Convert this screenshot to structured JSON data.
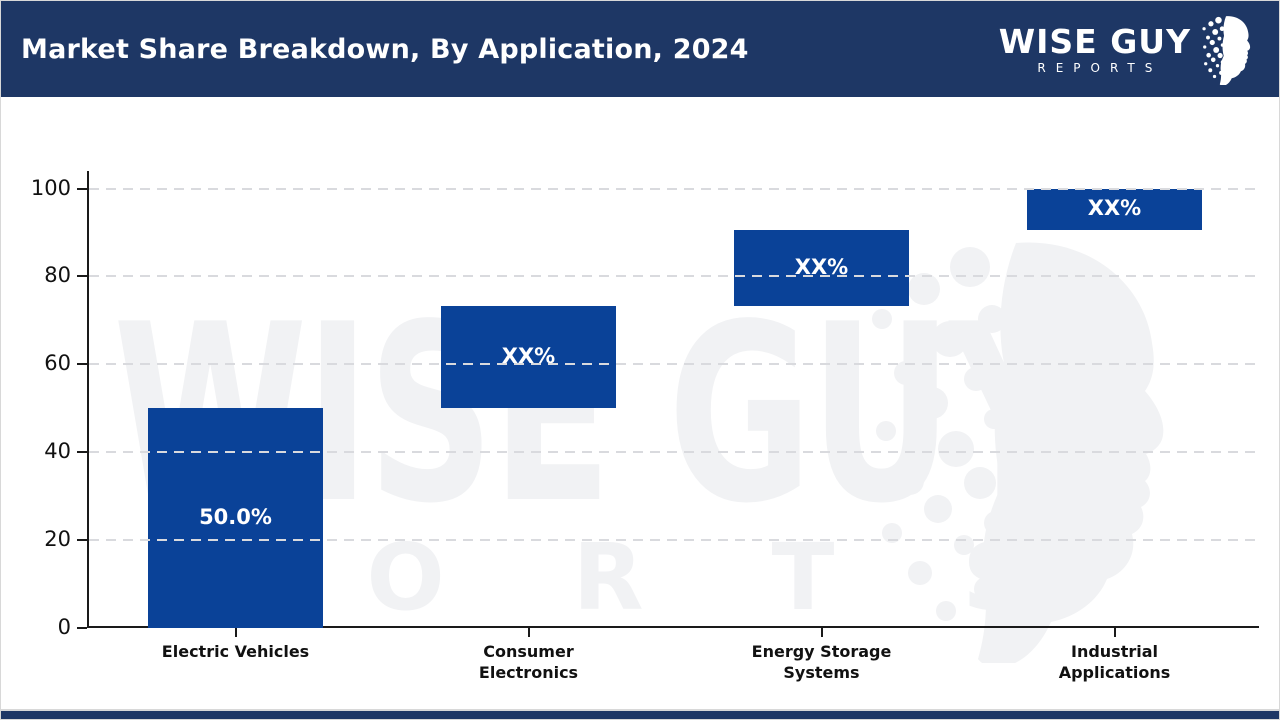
{
  "header": {
    "title": "Market Share Breakdown, By Application, 2024",
    "logo": {
      "wordmark": "WISE GUY",
      "subtext": "REPORTS"
    }
  },
  "watermark": {
    "line1": "WISE GUY",
    "line2": "P O R T S"
  },
  "colors": {
    "header_bg": "#1e3765",
    "bar": "#0a4298",
    "bar_label": "#ffffff",
    "axis": "#1a1a1a",
    "tick_label": "#111111",
    "grid": "#d9dade",
    "watermark": "#f1f2f4",
    "border": "#d8d8d8"
  },
  "chart_data": {
    "type": "bar",
    "subtype": "waterfall",
    "title": "Market Share Breakdown, By Application, 2024",
    "categories": [
      "Electric Vehicles",
      "Consumer Electronics",
      "Energy Storage Systems",
      "Industrial Applications"
    ],
    "category_lines": [
      [
        "Electric Vehicles"
      ],
      [
        "Consumer",
        "Electronics"
      ],
      [
        "Energy Storage",
        "Systems"
      ],
      [
        "Industrial",
        "Applications"
      ]
    ],
    "bars": [
      {
        "category": "Electric Vehicles",
        "start": 0,
        "end": 50,
        "value": 50.0,
        "label": "50.0%"
      },
      {
        "category": "Consumer Electronics",
        "start": 50,
        "end": 73.3,
        "value": 23.3,
        "label": "XX%"
      },
      {
        "category": "Energy Storage Systems",
        "start": 73.3,
        "end": 90.5,
        "value": 17.2,
        "label": "XX%"
      },
      {
        "category": "Industrial Applications",
        "start": 90.5,
        "end": 100,
        "value": 9.5,
        "label": "XX%"
      }
    ],
    "xlabel": "",
    "ylabel": "",
    "yticks": [
      0,
      20,
      40,
      60,
      80,
      100
    ],
    "ylim": [
      0,
      104
    ],
    "grid": "horizontal-dashed",
    "legend": "none",
    "bar_color": "#0a4298"
  }
}
